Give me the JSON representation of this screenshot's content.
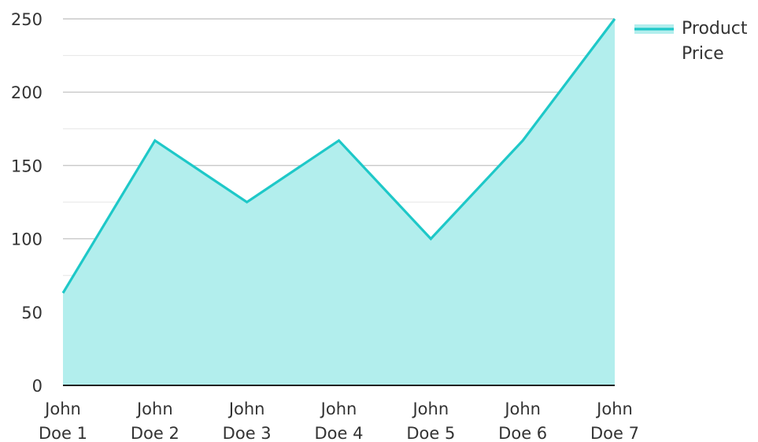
{
  "chart_data": {
    "type": "area",
    "categories": [
      [
        "John",
        "Doe 1"
      ],
      [
        "John",
        "Doe 2"
      ],
      [
        "John",
        "Doe 3"
      ],
      [
        "John",
        "Doe 4"
      ],
      [
        "John",
        "Doe 5"
      ],
      [
        "John",
        "Doe 6"
      ],
      [
        "John",
        "Doe 7"
      ]
    ],
    "series": [
      {
        "name": "Product Price",
        "name_lines": [
          "Product",
          "Price"
        ],
        "values": [
          63,
          167,
          125,
          167,
          100,
          167,
          250
        ],
        "line_color": "#1ec8c8",
        "fill_color": "#b2eeed"
      }
    ],
    "title": "",
    "xlabel": "",
    "ylabel": "",
    "ylim": [
      0,
      250
    ],
    "yticks": [
      0,
      50,
      100,
      150,
      200,
      250
    ],
    "grid": true,
    "legend": "top-right"
  }
}
